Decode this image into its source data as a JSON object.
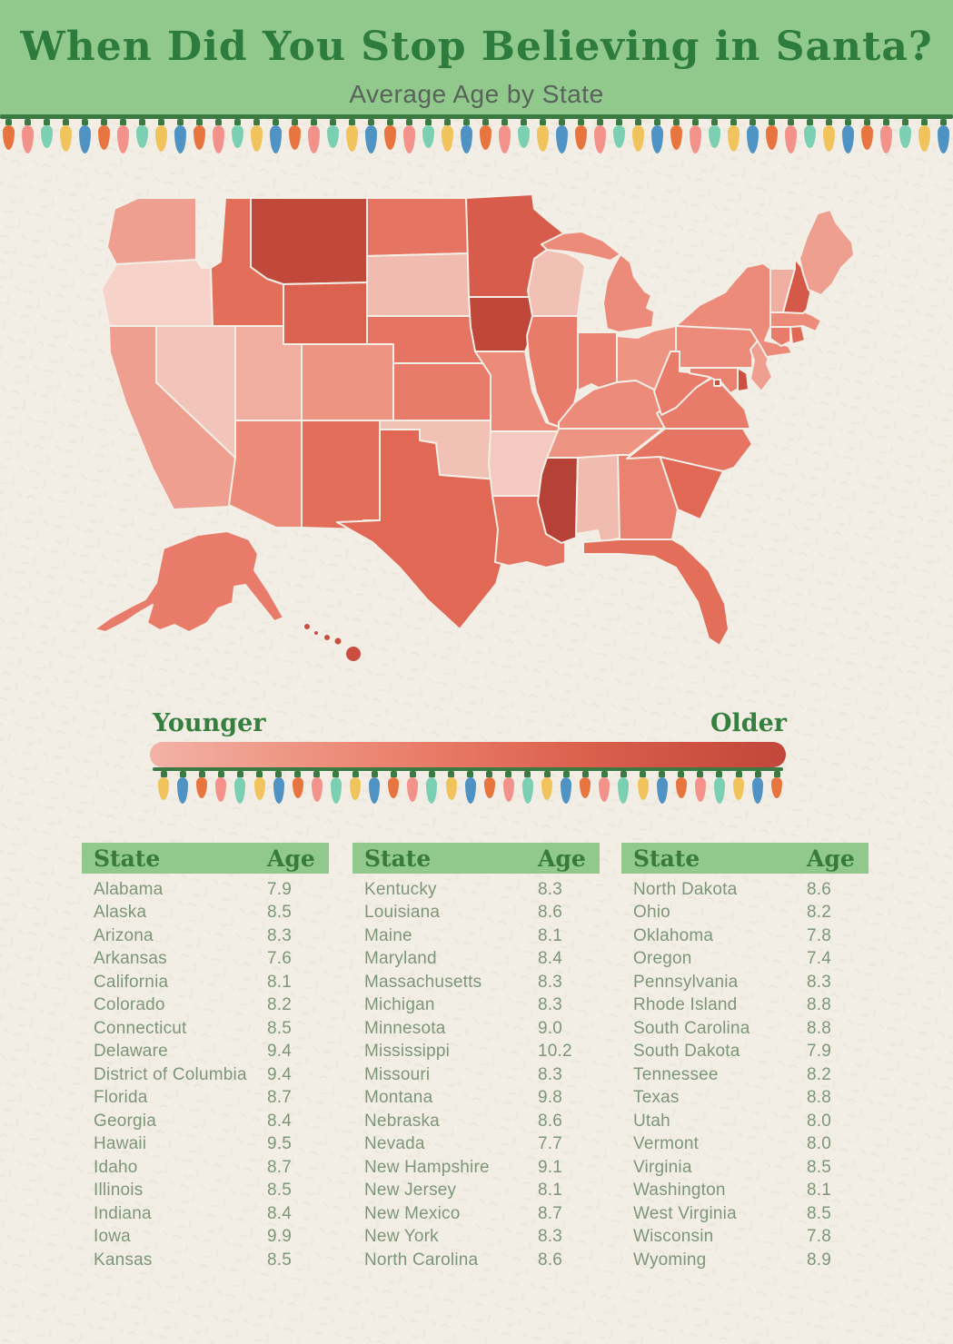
{
  "header": {
    "title": "When Did You Stop Believing in Santa?",
    "subtitle": "Average Age by State",
    "bg_color": "#90c98b",
    "title_color": "#2e7b3e",
    "subtitle_color": "#58635a"
  },
  "lights": {
    "wire_color": "#3c7a44",
    "bulb_colors": [
      "#e8743f",
      "#f2928b",
      "#7bcfb3",
      "#f1c35d",
      "#4f93c5"
    ]
  },
  "legend": {
    "younger_label": "Younger",
    "older_label": "Older",
    "label_color": "#35803f",
    "gradient_start": "#f3b2a7",
    "gradient_end": "#c2463a"
  },
  "map": {
    "stroke_color": "#f3eee6",
    "scale_domain": [
      7.4,
      10.2
    ],
    "scale_stops": [
      [
        0.0,
        "#f7d2c9"
      ],
      [
        0.18,
        "#f1bcb0"
      ],
      [
        0.26,
        "#ee9b8a"
      ],
      [
        0.36,
        "#ea8170"
      ],
      [
        0.48,
        "#e26b57"
      ],
      [
        0.58,
        "#d75b4b"
      ],
      [
        0.72,
        "#cb5040"
      ],
      [
        1.0,
        "#b64136"
      ]
    ]
  },
  "table": {
    "state_header": "State",
    "age_header": "Age",
    "header_bg": "#90c98b",
    "header_text_color": "#377a3c",
    "row_text_color": "#7d9678",
    "columns": 3,
    "rows_per_column": 17
  },
  "chart_data": {
    "type": "heatmap",
    "subtype": "us-state-choropleth",
    "title": "When Did You Stop Believing in Santa?",
    "subtitle": "Average Age by State",
    "legend_low_label": "Younger",
    "legend_high_label": "Older",
    "value_range": [
      7.4,
      10.2
    ],
    "states": [
      {
        "name": "Alabama",
        "abbr": "AL",
        "age": "7.9",
        "value": 7.9
      },
      {
        "name": "Alaska",
        "abbr": "AK",
        "age": "8.5",
        "value": 8.5
      },
      {
        "name": "Arizona",
        "abbr": "AZ",
        "age": "8.3",
        "value": 8.3
      },
      {
        "name": "Arkansas",
        "abbr": "AR",
        "age": "7.6",
        "value": 7.6
      },
      {
        "name": "California",
        "abbr": "CA",
        "age": "8.1",
        "value": 8.1
      },
      {
        "name": "Colorado",
        "abbr": "CO",
        "age": "8.2",
        "value": 8.2
      },
      {
        "name": "Connecticut",
        "abbr": "CT",
        "age": "8.5",
        "value": 8.5
      },
      {
        "name": "Delaware",
        "abbr": "DE",
        "age": "9.4",
        "value": 9.4
      },
      {
        "name": "District of Columbia",
        "abbr": "DC",
        "age": "9.4",
        "value": 9.4
      },
      {
        "name": "Florida",
        "abbr": "FL",
        "age": "8.7",
        "value": 8.7
      },
      {
        "name": "Georgia",
        "abbr": "GA",
        "age": "8.4",
        "value": 8.4
      },
      {
        "name": "Hawaii",
        "abbr": "HI",
        "age": "9.5",
        "value": 9.5
      },
      {
        "name": "Idaho",
        "abbr": "ID",
        "age": "8.7",
        "value": 8.7
      },
      {
        "name": "Illinois",
        "abbr": "IL",
        "age": "8.5",
        "value": 8.5
      },
      {
        "name": "Indiana",
        "abbr": "IN",
        "age": "8.4",
        "value": 8.4
      },
      {
        "name": "Iowa",
        "abbr": "IA",
        "age": "9.9",
        "value": 9.9
      },
      {
        "name": "Kansas",
        "abbr": "KS",
        "age": "8.5",
        "value": 8.5
      },
      {
        "name": "Kentucky",
        "abbr": "KY",
        "age": "8.3",
        "value": 8.3
      },
      {
        "name": "Louisiana",
        "abbr": "LA",
        "age": "8.6",
        "value": 8.6
      },
      {
        "name": "Maine",
        "abbr": "ME",
        "age": "8.1",
        "value": 8.1
      },
      {
        "name": "Maryland",
        "abbr": "MD",
        "age": "8.4",
        "value": 8.4
      },
      {
        "name": "Massachusetts",
        "abbr": "MA",
        "age": "8.3",
        "value": 8.3
      },
      {
        "name": "Michigan",
        "abbr": "MI",
        "age": "8.3",
        "value": 8.3
      },
      {
        "name": "Minnesota",
        "abbr": "MN",
        "age": "9.0",
        "value": 9.0
      },
      {
        "name": "Mississippi",
        "abbr": "MS",
        "age": "10.2",
        "value": 10.2
      },
      {
        "name": "Missouri",
        "abbr": "MO",
        "age": "8.3",
        "value": 8.3
      },
      {
        "name": "Montana",
        "abbr": "MT",
        "age": "9.8",
        "value": 9.8
      },
      {
        "name": "Nebraska",
        "abbr": "NE",
        "age": "8.6",
        "value": 8.6
      },
      {
        "name": "Nevada",
        "abbr": "NV",
        "age": "7.7",
        "value": 7.7
      },
      {
        "name": "New Hampshire",
        "abbr": "NH",
        "age": "9.1",
        "value": 9.1
      },
      {
        "name": "New Jersey",
        "abbr": "NJ",
        "age": "8.1",
        "value": 8.1
      },
      {
        "name": "New Mexico",
        "abbr": "NM",
        "age": "8.7",
        "value": 8.7
      },
      {
        "name": "New York",
        "abbr": "NY",
        "age": "8.3",
        "value": 8.3
      },
      {
        "name": "North Carolina",
        "abbr": "NC",
        "age": "8.6",
        "value": 8.6
      },
      {
        "name": "North Dakota",
        "abbr": "ND",
        "age": "8.6",
        "value": 8.6
      },
      {
        "name": "Ohio",
        "abbr": "OH",
        "age": "8.2",
        "value": 8.2
      },
      {
        "name": "Oklahoma",
        "abbr": "OK",
        "age": "7.8",
        "value": 7.8
      },
      {
        "name": "Oregon",
        "abbr": "OR",
        "age": "7.4",
        "value": 7.4
      },
      {
        "name": "Pennsylvania",
        "abbr": "PA",
        "age": "8.3",
        "value": 8.3
      },
      {
        "name": "Rhode Island",
        "abbr": "RI",
        "age": "8.8",
        "value": 8.8
      },
      {
        "name": "South Carolina",
        "abbr": "SC",
        "age": "8.8",
        "value": 8.8
      },
      {
        "name": "South Dakota",
        "abbr": "SD",
        "age": "7.9",
        "value": 7.9
      },
      {
        "name": "Tennessee",
        "abbr": "TN",
        "age": "8.2",
        "value": 8.2
      },
      {
        "name": "Texas",
        "abbr": "TX",
        "age": "8.8",
        "value": 8.8
      },
      {
        "name": "Utah",
        "abbr": "UT",
        "age": "8.0",
        "value": 8.0
      },
      {
        "name": "Vermont",
        "abbr": "VT",
        "age": "8.0",
        "value": 8.0
      },
      {
        "name": "Virginia",
        "abbr": "VA",
        "age": "8.5",
        "value": 8.5
      },
      {
        "name": "Washington",
        "abbr": "WA",
        "age": "8.1",
        "value": 8.1
      },
      {
        "name": "West Virginia",
        "abbr": "WV",
        "age": "8.5",
        "value": 8.5
      },
      {
        "name": "Wisconsin",
        "abbr": "WI",
        "age": "7.8",
        "value": 7.8
      },
      {
        "name": "Wyoming",
        "abbr": "WY",
        "age": "8.9",
        "value": 8.9
      }
    ]
  }
}
